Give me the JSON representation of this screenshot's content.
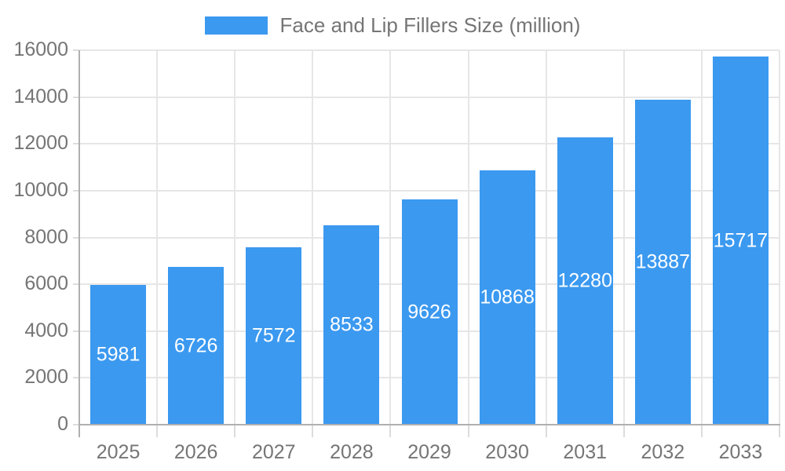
{
  "chart_data": {
    "type": "bar",
    "title": "Face and Lip Fillers Size (million)",
    "series_label": "Face and Lip Fillers Size (million)",
    "categories": [
      "2025",
      "2026",
      "2027",
      "2028",
      "2029",
      "2030",
      "2031",
      "2032",
      "2033"
    ],
    "values": [
      5981,
      6726,
      7572,
      8533,
      9626,
      10868,
      12280,
      13887,
      15717
    ],
    "xlabel": "",
    "ylabel": "",
    "ylim": [
      0,
      16000
    ],
    "ytick_step": 2000,
    "ytick_labels": [
      "0",
      "2000",
      "4000",
      "6000",
      "8000",
      "10000",
      "12000",
      "14000",
      "16000"
    ],
    "grid": "on",
    "legend_position": "top-center",
    "value_label_position": "inside-center",
    "colors": {
      "bar": "#3B99F0",
      "value_text": "#ffffff",
      "axis_text": "#757575",
      "legend_text": "#757575",
      "grid_line": "#e6e6e6",
      "tick_line": "#dcdcdc",
      "axis_line": "#b0b0b0",
      "background": "#ffffff"
    }
  }
}
